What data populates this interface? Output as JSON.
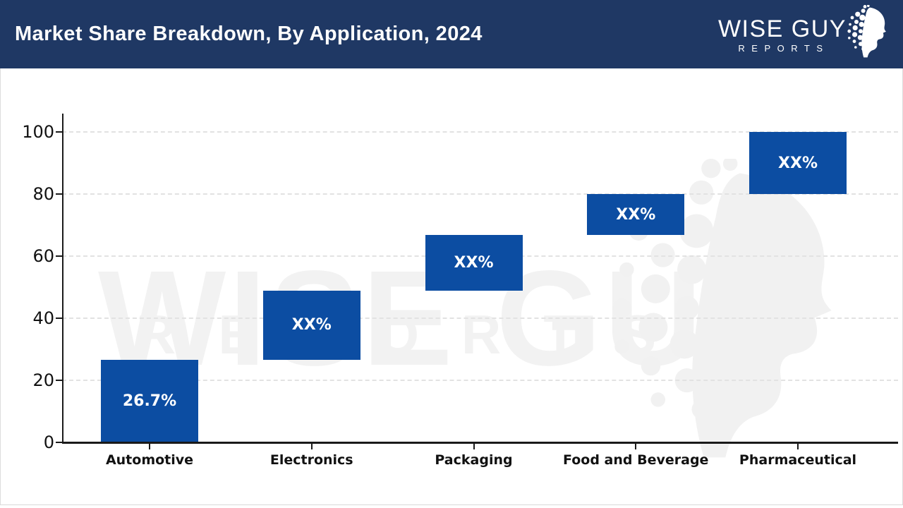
{
  "header": {
    "title": "Market Share Breakdown, By Application, 2024"
  },
  "brand": {
    "line1": "WISE GUY",
    "line2": "REPORTS"
  },
  "watermark": {
    "line1": "WISE GUY",
    "line2": "REPORTS"
  },
  "colors": {
    "header_bg": "#1F3864",
    "bar": "#0C4DA2",
    "bar_label": "#FFFFFF",
    "axis": "#1A1A1A",
    "gridline": "#E2E2E2",
    "watermark": "#F2F2F2",
    "background": "#FFFFFF",
    "bottom_border": "#D9D9D9"
  },
  "chart_data": {
    "type": "bar",
    "subtype": "waterfall",
    "title": "Market Share Breakdown, By Application, 2024",
    "categories": [
      "Automotive",
      "Electronics",
      "Packaging",
      "Food and Beverage",
      "Pharmaceutical"
    ],
    "segments": [
      {
        "category": "Automotive",
        "start": 0,
        "end": 26.7,
        "label": "26.7%"
      },
      {
        "category": "Electronics",
        "start": 26.7,
        "end": 48.9,
        "label": "XX%"
      },
      {
        "category": "Packaging",
        "start": 48.9,
        "end": 66.8,
        "label": "XX%"
      },
      {
        "category": "Food and Beverage",
        "start": 66.8,
        "end": 80,
        "label": "XX%"
      },
      {
        "category": "Pharmaceutical",
        "start": 80,
        "end": 100,
        "label": "XX%"
      }
    ],
    "ylim": [
      0,
      100
    ],
    "yticks": [
      0,
      20,
      40,
      60,
      80,
      100
    ],
    "xlabel": "",
    "ylabel": "",
    "grid": "horizontal-dashed",
    "legend": "none",
    "bar_color": "#0C4DA2"
  }
}
